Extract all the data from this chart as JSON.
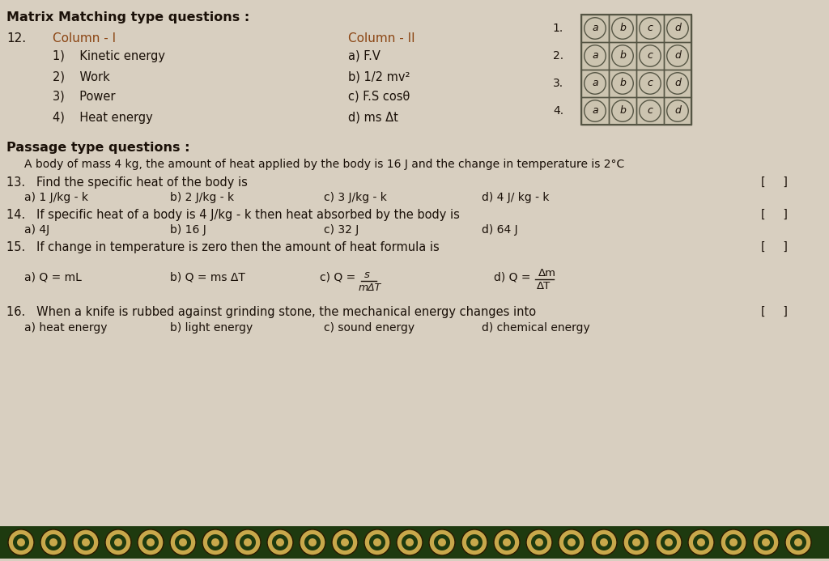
{
  "paper_color": "#d8cfc0",
  "title_matrix": "Matrix Matching type questions :",
  "q12_num": "12.",
  "col1_header": "Column - I",
  "col2_header": "Column - II",
  "col1_items": [
    "1)    Kinetic energy",
    "2)    Work",
    "3)    Power",
    "4)    Heat energy"
  ],
  "col2_items": [
    "a) F.V",
    "b) 1/2 mv²",
    "c) F.S cosθ",
    "d) ms Δt"
  ],
  "grid_rows": [
    "1.",
    "2.",
    "3.",
    "4."
  ],
  "grid_cols": [
    "a",
    "b",
    "c",
    "d"
  ],
  "passage_header": "Passage type questions :",
  "passage_text": "A body of mass 4 kg, the amount of heat applied by the body is 16 J and the change in temperature is 2°C",
  "q13_text": "13.   Find the specific heat of the body is",
  "q13_opts": [
    "a) 1 J/kg - k",
    "b) 2 J/kg - k",
    "c) 3 J/kg - k",
    "d) 4 J/ kg - k"
  ],
  "q14_text": "14.   If specific heat of a body is 4 J/kg - k then heat absorbed by the body is",
  "q14_opts": [
    "a) 4J",
    "b) 16 J",
    "c) 32 J",
    "d) 64 J"
  ],
  "q15_text": "15.   If change in temperature is zero then the amount of heat formula is",
  "q15_opt_a": "a) Q = mL",
  "q15_opt_b": "b) Q = ms ΔT",
  "q16_text": "16.   When a knife is rubbed against grinding stone, the mechanical energy changes into",
  "q16_opts": [
    "a) heat energy",
    "b) light energy",
    "c) sound energy",
    "d) chemical energy"
  ],
  "header_color": "#8B4513",
  "text_color": "#1a1008",
  "bracket_color": "#1a1008",
  "grid_border": "#555544",
  "grid_bg": "#ccc4b0",
  "passage_bold_color": "#1a1008",
  "border_dark": "#2d4a1e",
  "border_light": "#b8860b"
}
